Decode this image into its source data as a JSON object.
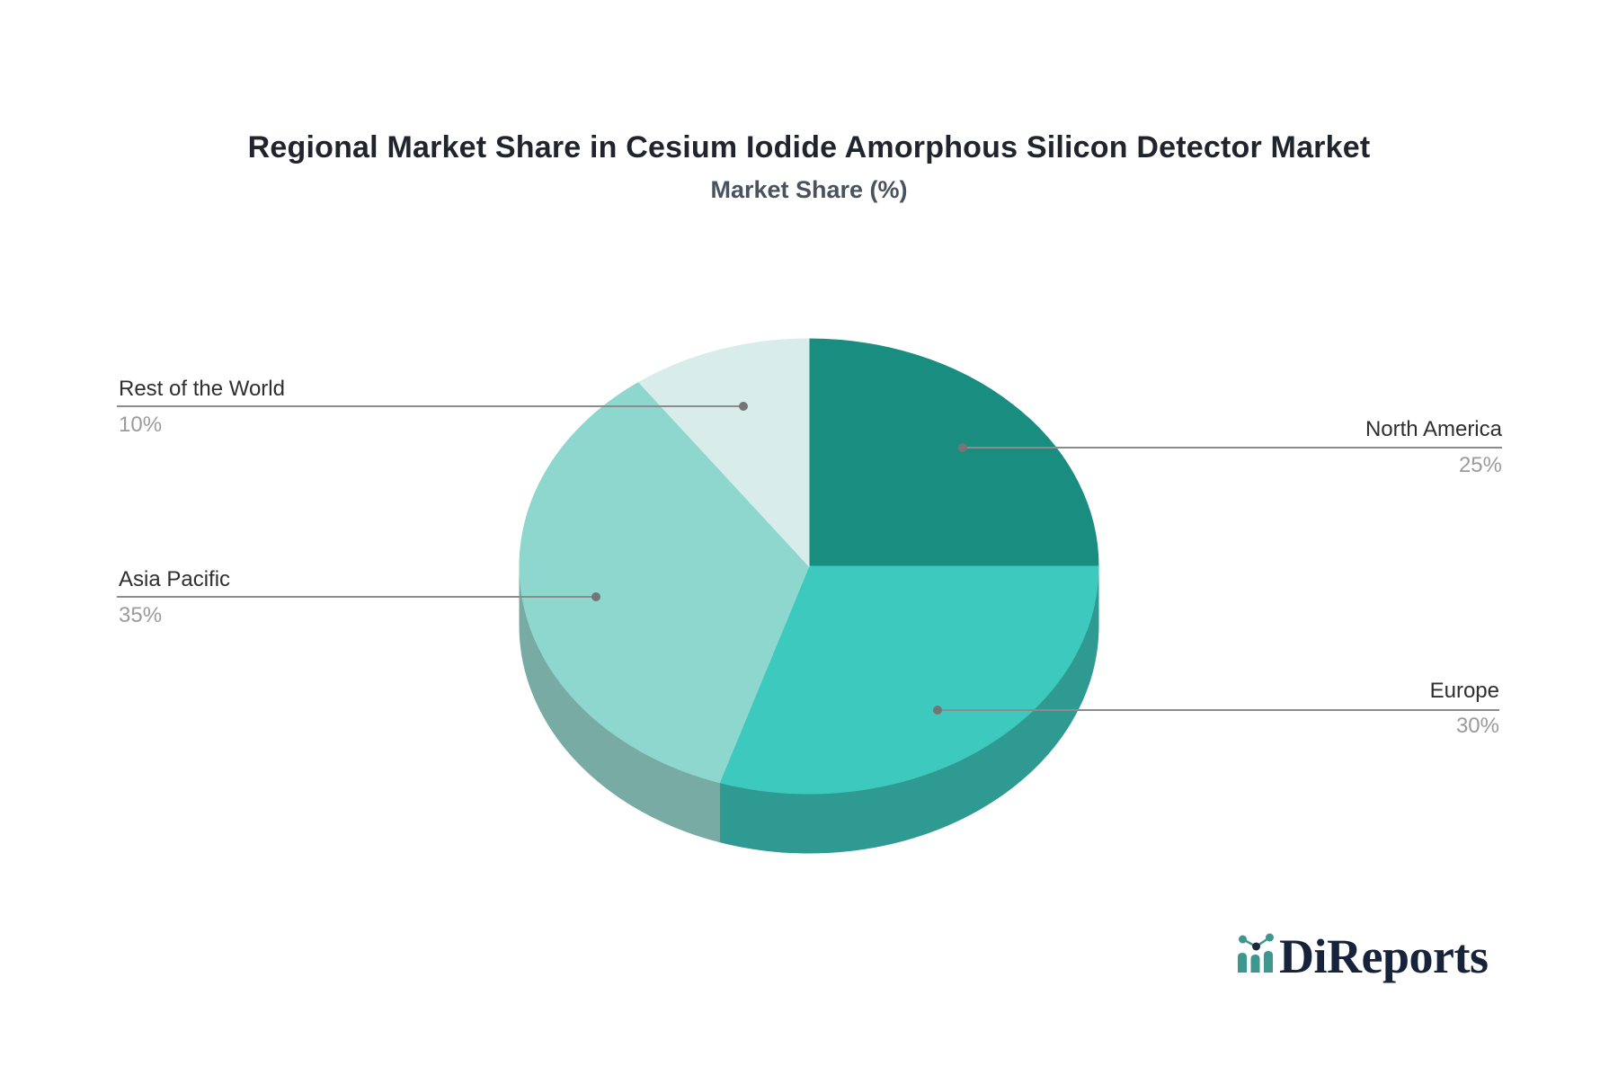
{
  "brand": {
    "name": "DiReports"
  },
  "chart_data": {
    "type": "pie",
    "style": "3d",
    "title": "Regional Market Share in Cesium Iodide Amorphous Silicon Detector Market",
    "subtitle": "Market Share (%)",
    "unit": "%",
    "direction": "clockwise",
    "start_angle_deg": 0,
    "legend_position": "callout-labels",
    "slices": [
      {
        "label": "North America",
        "value": 25,
        "value_label": "25%",
        "color": "#1a8d81",
        "callout_side": "right"
      },
      {
        "label": "Europe",
        "value": 30,
        "value_label": "30%",
        "color": "#3dc9bd",
        "side_color": "#2e9a92",
        "callout_side": "right"
      },
      {
        "label": "Asia Pacific",
        "value": 35,
        "value_label": "35%",
        "color": "#8ed7ce",
        "side_color": "#78aba4",
        "callout_side": "left"
      },
      {
        "label": "Rest of the World",
        "value": 10,
        "value_label": "10%",
        "color": "#d8ece9",
        "callout_side": "left"
      }
    ],
    "colors": {
      "leader_line": "#8c8c8c",
      "leader_dot": "#757575",
      "label_text": "#2f2f2f",
      "value_text": "#9b9b9b",
      "title_text": "#20242c",
      "subtitle_text": "#49525f"
    }
  }
}
